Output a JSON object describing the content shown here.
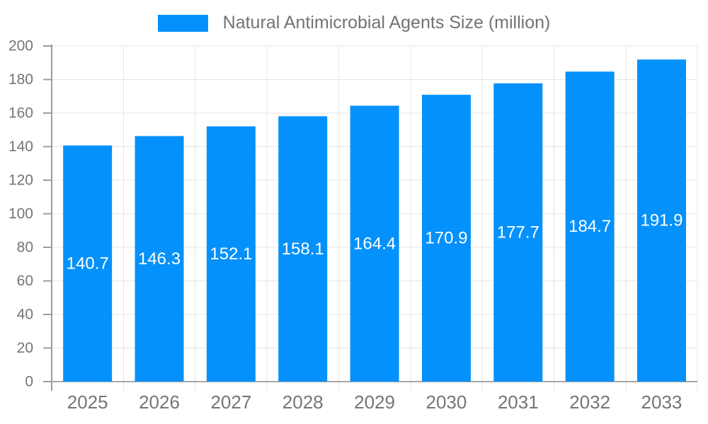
{
  "chart_data": {
    "type": "bar",
    "title": "",
    "legend": {
      "position": "top",
      "label": "Natural Antimicrobial Agents Size (million)"
    },
    "categories": [
      "2025",
      "2026",
      "2027",
      "2028",
      "2029",
      "2030",
      "2031",
      "2032",
      "2033"
    ],
    "series": [
      {
        "name": "Natural Antimicrobial Agents Size (million)",
        "values": [
          140.7,
          146.3,
          152.1,
          158.1,
          164.4,
          170.9,
          177.7,
          184.7,
          191.9
        ]
      }
    ],
    "value_labels": [
      "140.7",
      "146.3",
      "152.1",
      "158.1",
      "164.4",
      "170.9",
      "177.7",
      "184.7",
      "191.9"
    ],
    "xlabel": "",
    "ylabel": "",
    "ylim": [
      0,
      200
    ],
    "ytick_interval": 20,
    "yticks": [
      0,
      20,
      40,
      60,
      80,
      100,
      120,
      140,
      160,
      180,
      200
    ],
    "grid": true,
    "legend_position": "top",
    "colors": {
      "bar": "#0591fb",
      "bar_label": "#ffffff",
      "axis_text": "#757575",
      "axis_line": "#9c9c9c",
      "baseline": "#a8a8a8",
      "grid_line": "#e4e4e4",
      "background": "#ffffff"
    }
  }
}
